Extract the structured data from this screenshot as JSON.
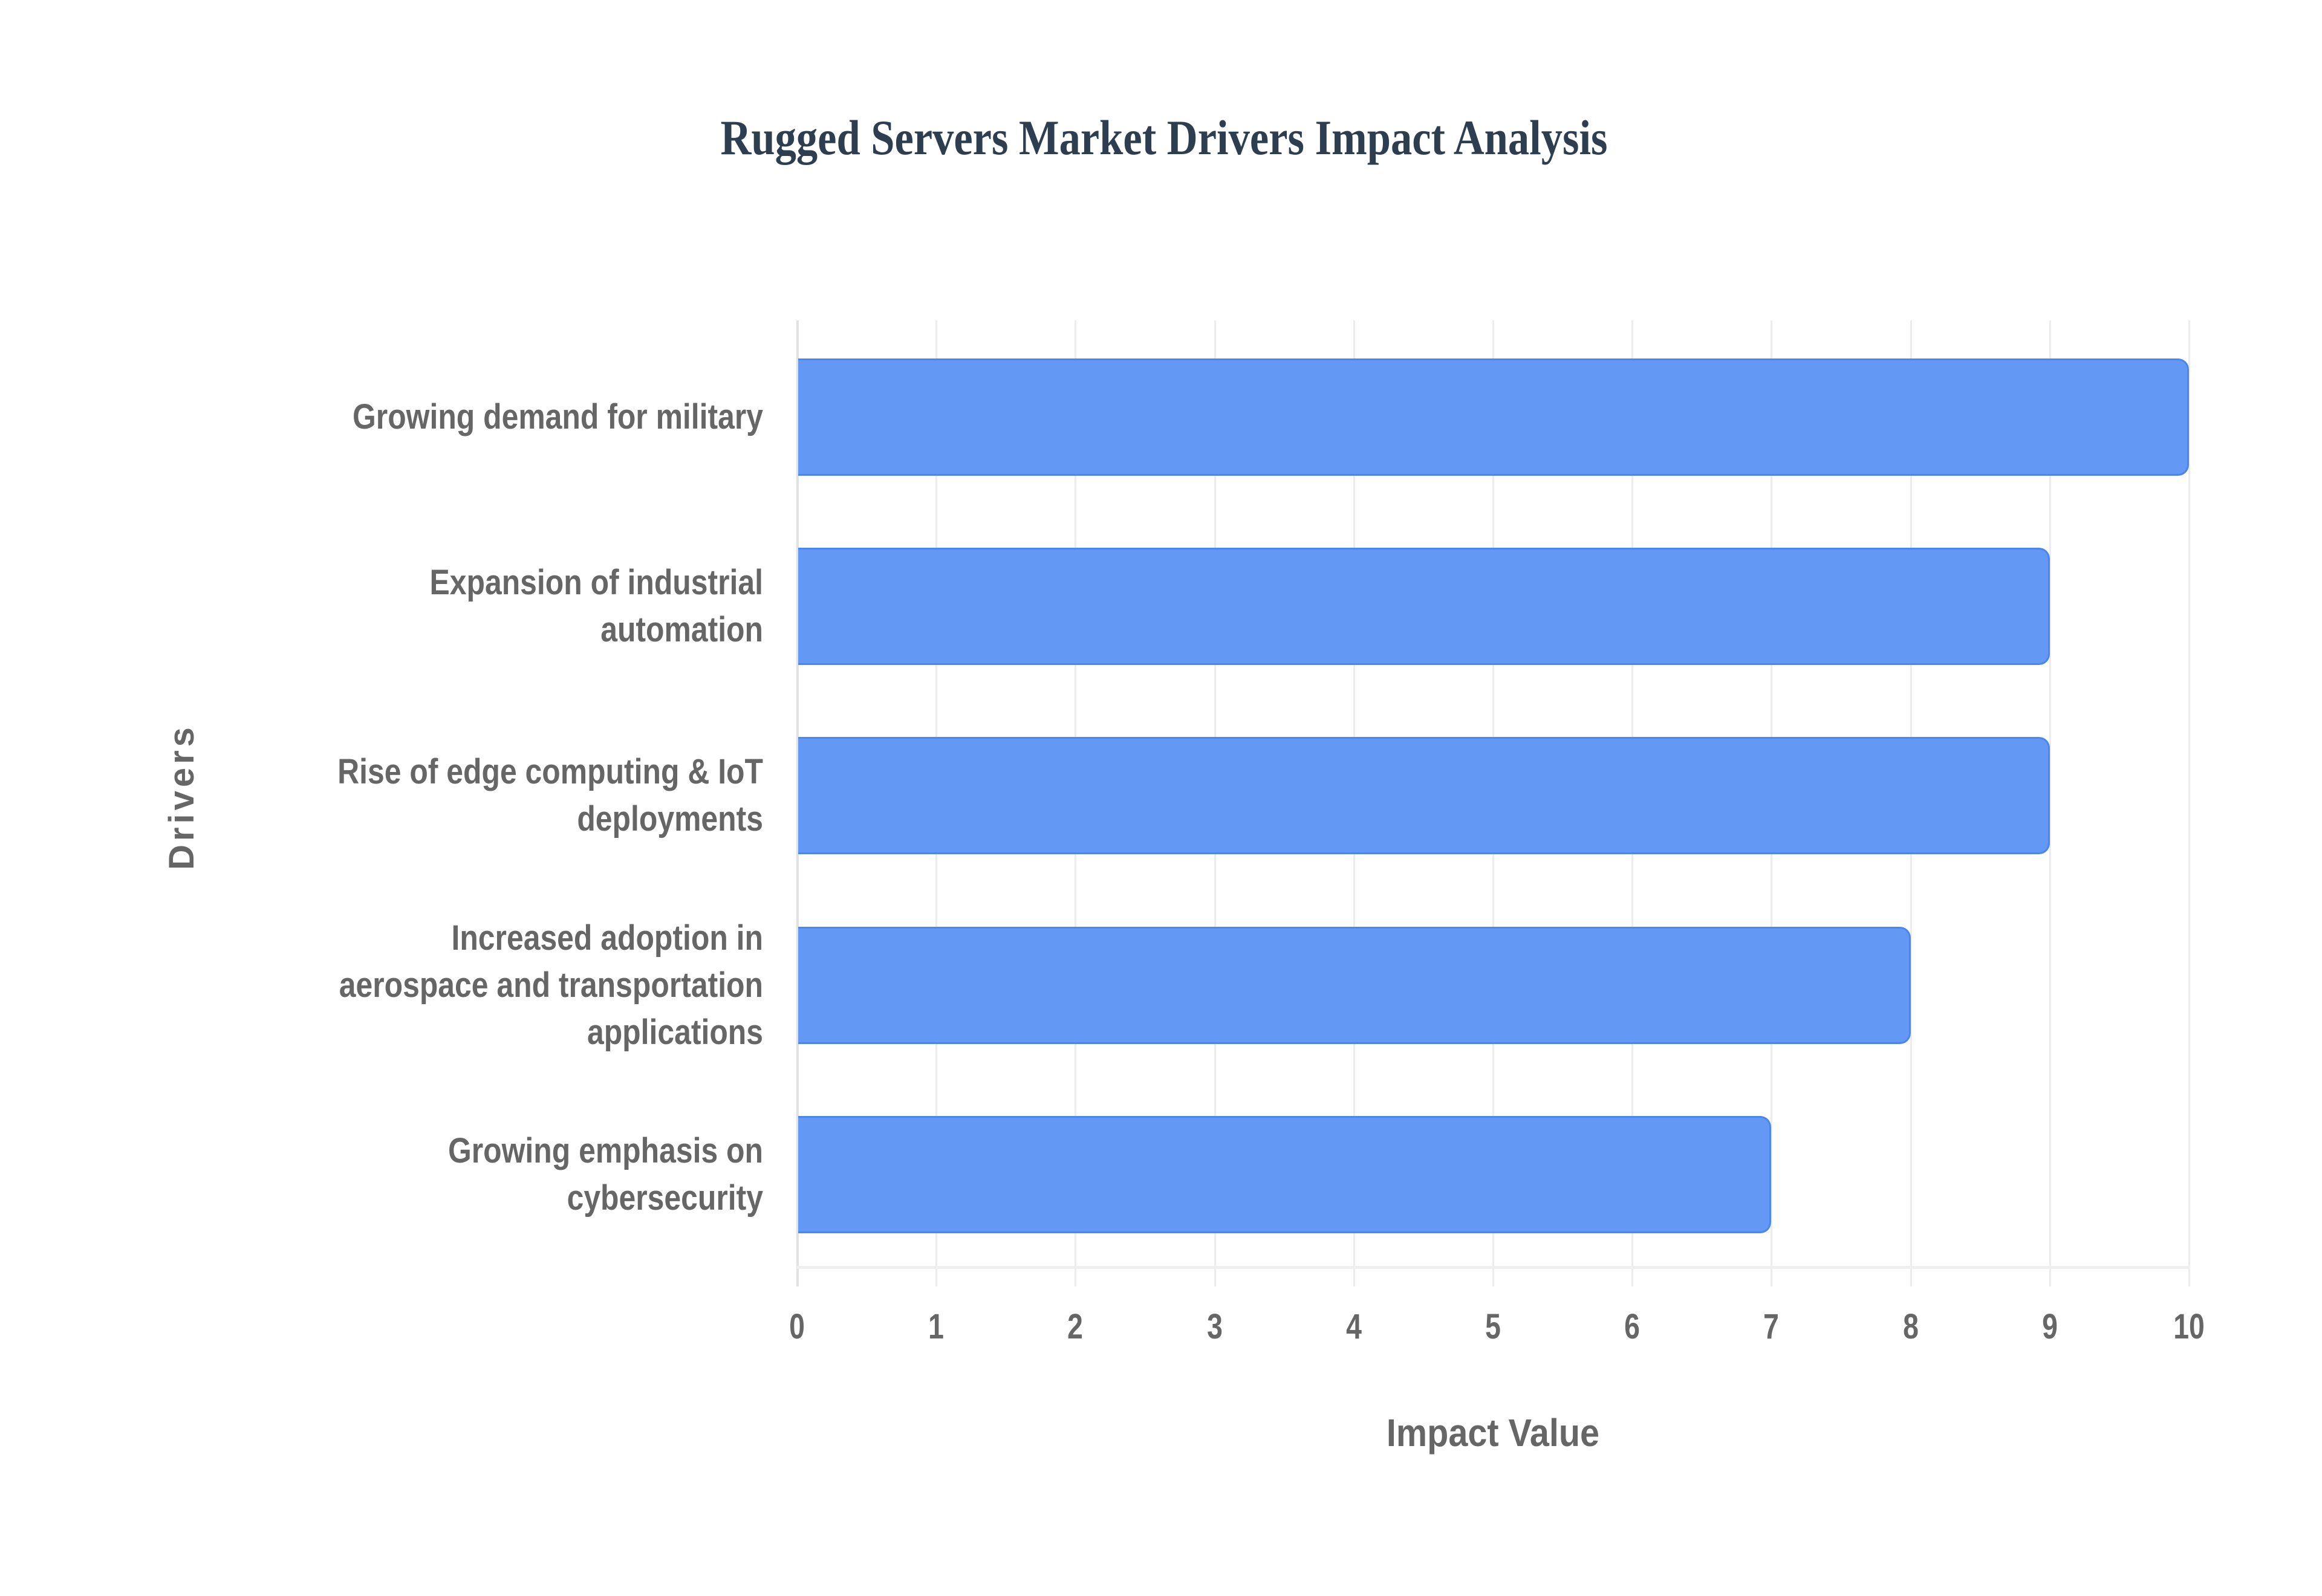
{
  "chart_data": {
    "type": "bar",
    "orientation": "horizontal",
    "title": "Rugged Servers Market Drivers Impact Analysis",
    "xlabel": "Impact Value",
    "ylabel": "Drivers",
    "categories": [
      "Growing demand for military",
      "Expansion of industrial automation",
      "Rise of edge computing & IoT deployments",
      "Increased adoption in aerospace and transportation applications",
      "Growing emphasis on cybersecurity"
    ],
    "values": [
      10,
      9,
      9,
      8,
      7
    ],
    "xlim": [
      0,
      10
    ],
    "x_ticks": [
      "0",
      "1",
      "2",
      "3",
      "4",
      "5",
      "6",
      "7",
      "8",
      "9",
      "10"
    ],
    "grid": true,
    "legend": null,
    "colors": {
      "bar_fill": "#6399f4",
      "bar_border": "#4a86ee",
      "title": "#2c3e50",
      "axis_text": "#666666",
      "grid": "#ececec"
    }
  },
  "labels": {
    "bars": [
      {
        "lines": [
          "Growing demand for military"
        ]
      },
      {
        "lines": [
          "Expansion of industrial",
          "automation"
        ]
      },
      {
        "lines": [
          "Rise of edge computing & IoT",
          "deployments"
        ]
      },
      {
        "lines": [
          "Increased adoption in",
          "aerospace and transportation",
          "applications"
        ]
      },
      {
        "lines": [
          "Growing emphasis on",
          "cybersecurity"
        ]
      }
    ]
  }
}
